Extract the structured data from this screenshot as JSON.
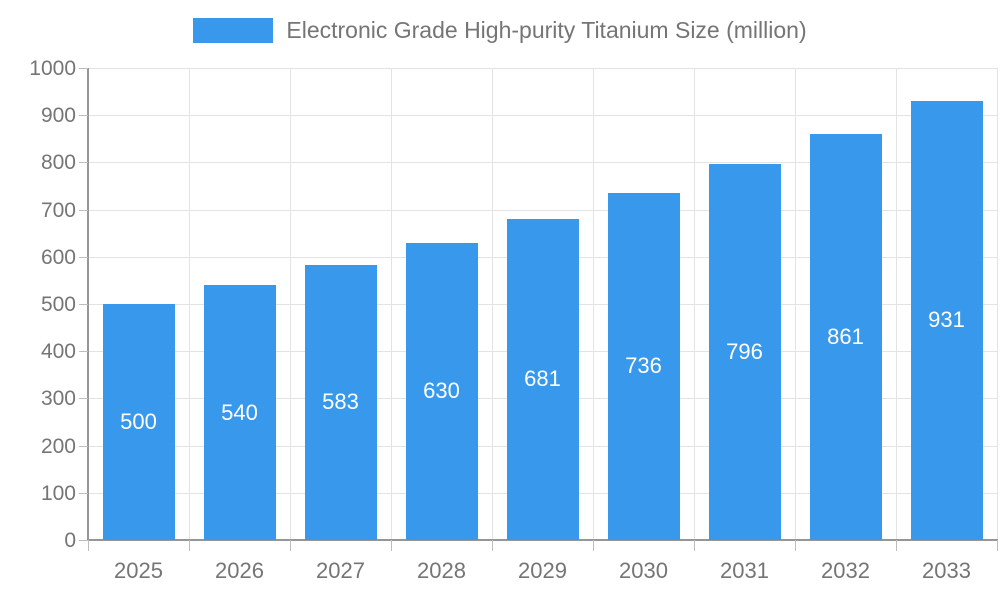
{
  "legend": {
    "label": "Electronic Grade High-purity Titanium Size (million)"
  },
  "chart_data": {
    "type": "bar",
    "title": "Electronic Grade High-purity Titanium Size (million)",
    "categories": [
      "2025",
      "2026",
      "2027",
      "2028",
      "2029",
      "2030",
      "2031",
      "2032",
      "2033"
    ],
    "values": [
      500,
      540,
      583,
      630,
      681,
      736,
      796,
      861,
      931
    ],
    "xlabel": "",
    "ylabel": "",
    "ylim": [
      0,
      1000
    ],
    "ytick_step": 100,
    "y_tick_labels": [
      "0",
      "100",
      "200",
      "300",
      "400",
      "500",
      "600",
      "700",
      "800",
      "900",
      "1000"
    ],
    "grid": "horizontal and vertical",
    "legend_position": "top-center",
    "value_labels": "inside bars, vertically centered, white",
    "colors": {
      "bar": "#3899ec",
      "grid": "#e3e3e3",
      "axis": "#969696",
      "tick": "#bdbdbd",
      "text": "#757575",
      "value_text": "#ffffff"
    }
  }
}
